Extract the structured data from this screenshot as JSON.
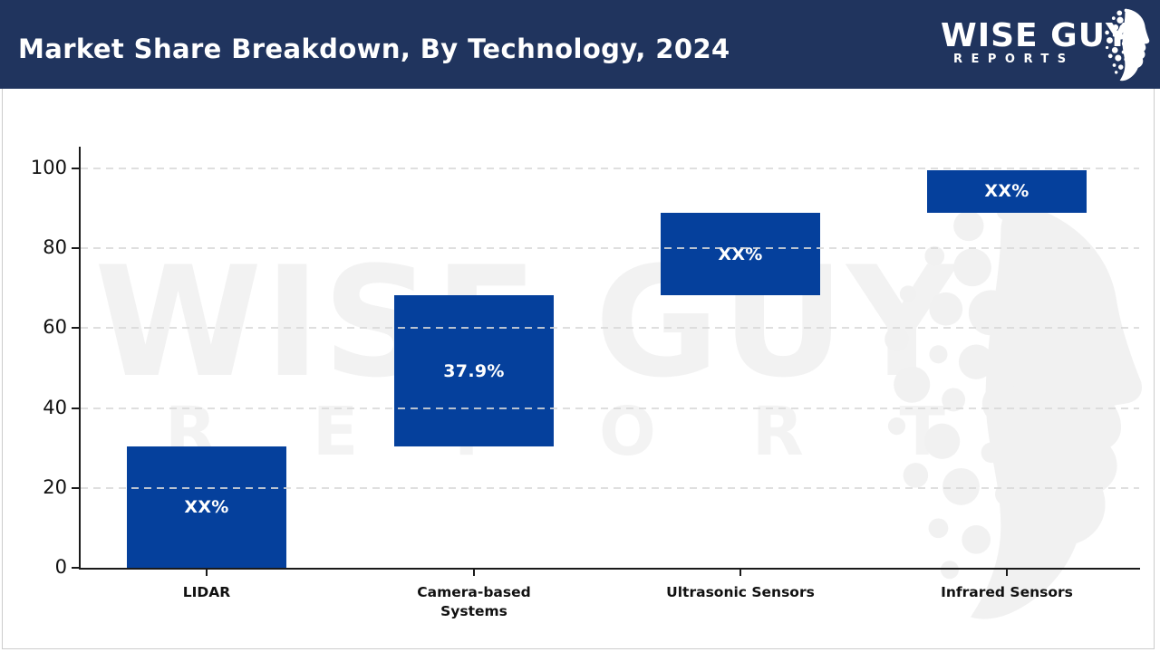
{
  "header": {
    "title": "Market Share Breakdown, By Technology, 2024",
    "logo": {
      "wordmark": "WISE GUY",
      "sub": "REPORTS"
    }
  },
  "watermark": {
    "line1": "WISE GUY",
    "line2": "R E P O R T S"
  },
  "colors": {
    "header_bg": "#20345e",
    "bar": "#05409c",
    "grid": "#d9d9d9",
    "axis": "#1a1a1a",
    "watermark": "#f2f2f2"
  },
  "chart_data": {
    "type": "bar",
    "variant": "waterfall",
    "title": "Market Share Breakdown, By Technology, 2024",
    "xlabel": "",
    "ylabel": "",
    "ylim": [
      0,
      105
    ],
    "yticks": [
      0,
      20,
      40,
      60,
      80,
      100
    ],
    "grid": "horizontal-dashed",
    "legend": "none",
    "bar_color": "#05409c",
    "categories": [
      "LIDAR",
      "Camera-based Systems",
      "Ultrasonic Sensors",
      "Infrared Sensors"
    ],
    "category_lines": [
      [
        "LIDAR"
      ],
      [
        "Camera-based",
        "Systems"
      ],
      [
        "Ultrasonic Sensors"
      ],
      [
        "Infrared Sensors"
      ]
    ],
    "segments": [
      {
        "category": "LIDAR",
        "start": 0,
        "end": 30.3,
        "value_label": "XX%"
      },
      {
        "category": "Camera-based Systems",
        "start": 30.3,
        "end": 68.2,
        "value_label": "37.9%"
      },
      {
        "category": "Ultrasonic Sensors",
        "start": 68.2,
        "end": 88.9,
        "value_label": "XX%"
      },
      {
        "category": "Infrared Sensors",
        "start": 88.9,
        "end": 99.6,
        "value_label": "XX%"
      }
    ]
  }
}
